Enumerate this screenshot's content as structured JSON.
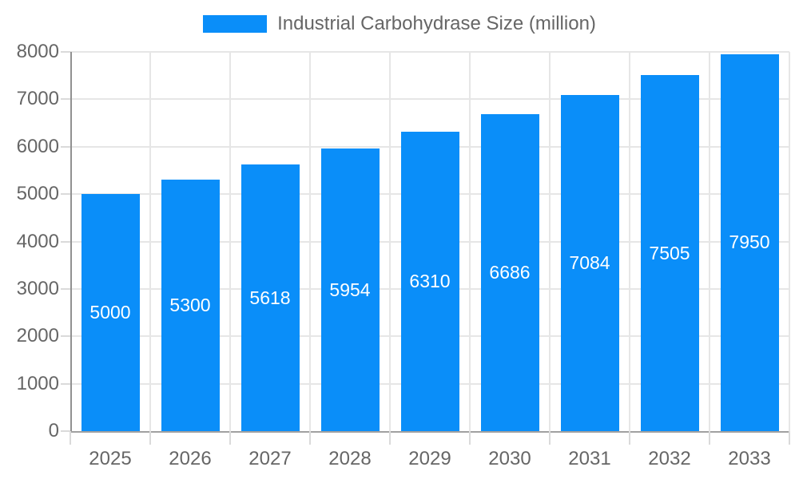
{
  "legend": {
    "label": "Industrial Carbohydrase Size (million)"
  },
  "chart_data": {
    "type": "bar",
    "title": "Industrial Carbohydrase Size (million)",
    "categories": [
      "2025",
      "2026",
      "2027",
      "2028",
      "2029",
      "2030",
      "2031",
      "2032",
      "2033"
    ],
    "values": [
      5000,
      5300,
      5618,
      5954,
      6310,
      6686,
      7084,
      7505,
      7950
    ],
    "xlabel": "",
    "ylabel": "",
    "ylim": [
      0,
      8000
    ],
    "ytick_step": 1000,
    "grid": true,
    "legend_position": "top",
    "bar_color": "#0a8ef9",
    "bar_label_color": "#ffffff",
    "axis_label_color": "#666666",
    "gridline_color": "#e6e6e6"
  }
}
